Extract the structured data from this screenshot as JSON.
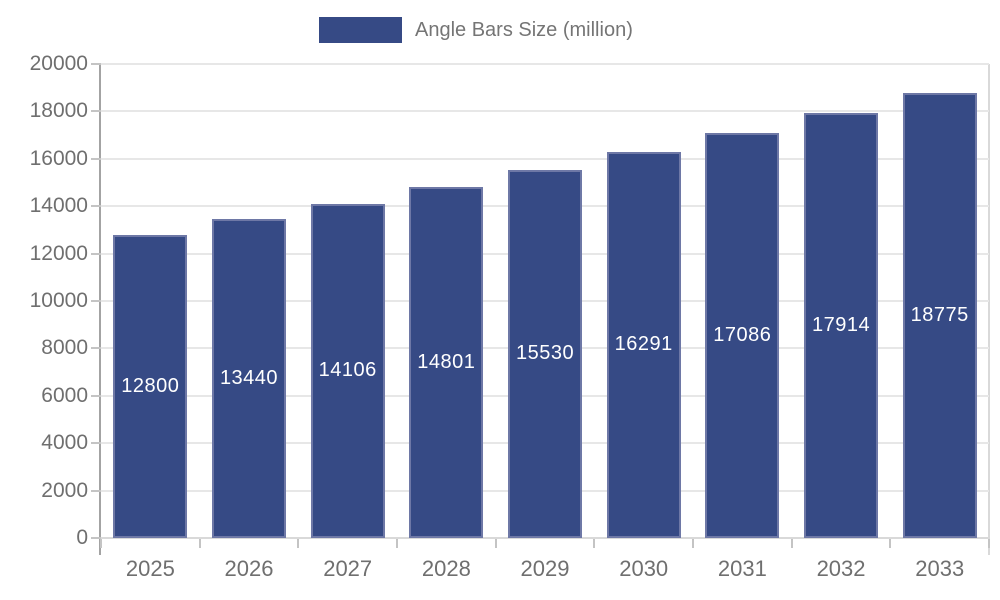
{
  "legend": {
    "label": "Angle Bars Size (million)"
  },
  "chart_data": {
    "type": "bar",
    "title": "",
    "xlabel": "",
    "ylabel": "",
    "categories": [
      "2025",
      "2026",
      "2027",
      "2028",
      "2029",
      "2030",
      "2031",
      "2032",
      "2033"
    ],
    "series": [
      {
        "name": "Angle Bars Size (million)",
        "values": [
          12800,
          13440,
          14106,
          14801,
          15530,
          16291,
          17086,
          17914,
          18775
        ]
      }
    ],
    "value_labels_shown": true,
    "ylim": [
      0,
      20000
    ],
    "ytick_step": 2000,
    "yticks": [
      0,
      2000,
      4000,
      6000,
      8000,
      10000,
      12000,
      14000,
      16000,
      18000,
      20000
    ],
    "grid": true,
    "legend_position": "top-center",
    "colors": {
      "bar_fill": "#364a85",
      "bar_border": "#6e78a6",
      "value_label_text": "#ffffff",
      "gridline": "#e7e7e7",
      "axis_line": "#a3a3a3",
      "plot_border": "#d9d9d9",
      "tick": "#c4c4c4",
      "axis_text": "#6f6f6f",
      "legend_text": "#757575"
    }
  }
}
